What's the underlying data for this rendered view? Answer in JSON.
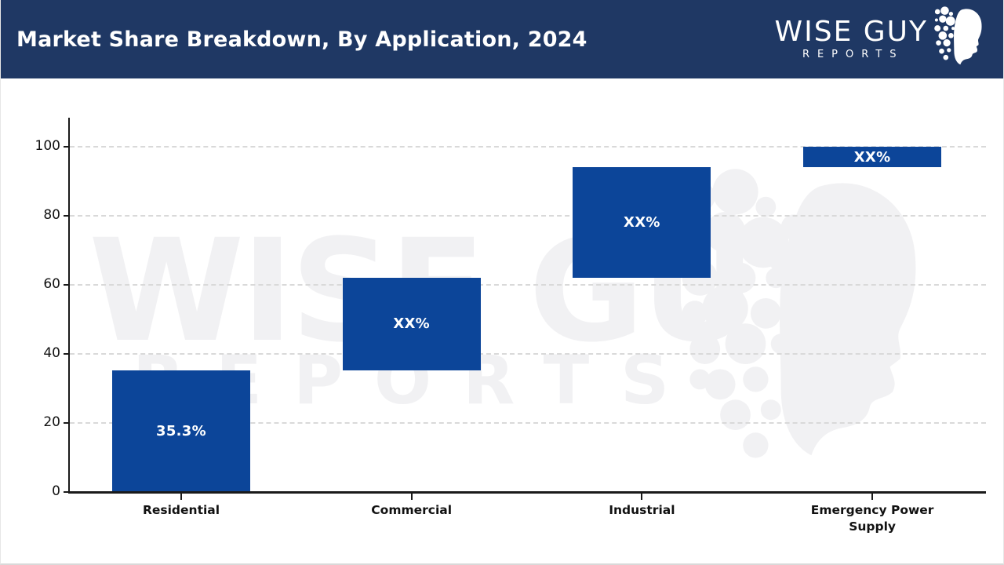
{
  "header": {
    "title": "Market Share Breakdown, By Application, 2024",
    "logo": {
      "brand_line1": "WISE GUY",
      "brand_line2": "REPORTS",
      "head_icon": "dotted-head-profile-icon"
    }
  },
  "watermark": {
    "line1": "WISE GUY",
    "line2": "REPORTS",
    "head_icon": "dotted-head-profile-watermark"
  },
  "colors": {
    "header_bg": "#1f3864",
    "bar": "#0c4599",
    "grid": "#d9d9d9",
    "axis": "#1a1a1a",
    "bar_label": "#ffffff",
    "watermark": "#f1f1f3"
  },
  "chart_data": {
    "type": "bar",
    "variant": "floating-stacked-waterfall",
    "title": "Market Share Breakdown, By Application, 2024",
    "categories": [
      "Residential",
      "Commercial",
      "Industrial",
      "Emergency Power\nSupply"
    ],
    "segments": [
      {
        "category": "Residential",
        "start": 0,
        "end": 35.3,
        "label": "35.3%"
      },
      {
        "category": "Commercial",
        "start": 35.3,
        "end": 62,
        "label": "XX%"
      },
      {
        "category": "Industrial",
        "start": 62,
        "end": 94,
        "label": "XX%"
      },
      {
        "category": "Emergency Power Supply",
        "start": 94,
        "end": 100,
        "label": "XX%"
      }
    ],
    "ylim": [
      0,
      100
    ],
    "yticks": [
      0,
      20,
      40,
      60,
      80,
      100
    ],
    "xlabel": "",
    "ylabel": "",
    "grid": "horizontal-dashed",
    "legend": null,
    "units": "percent"
  }
}
